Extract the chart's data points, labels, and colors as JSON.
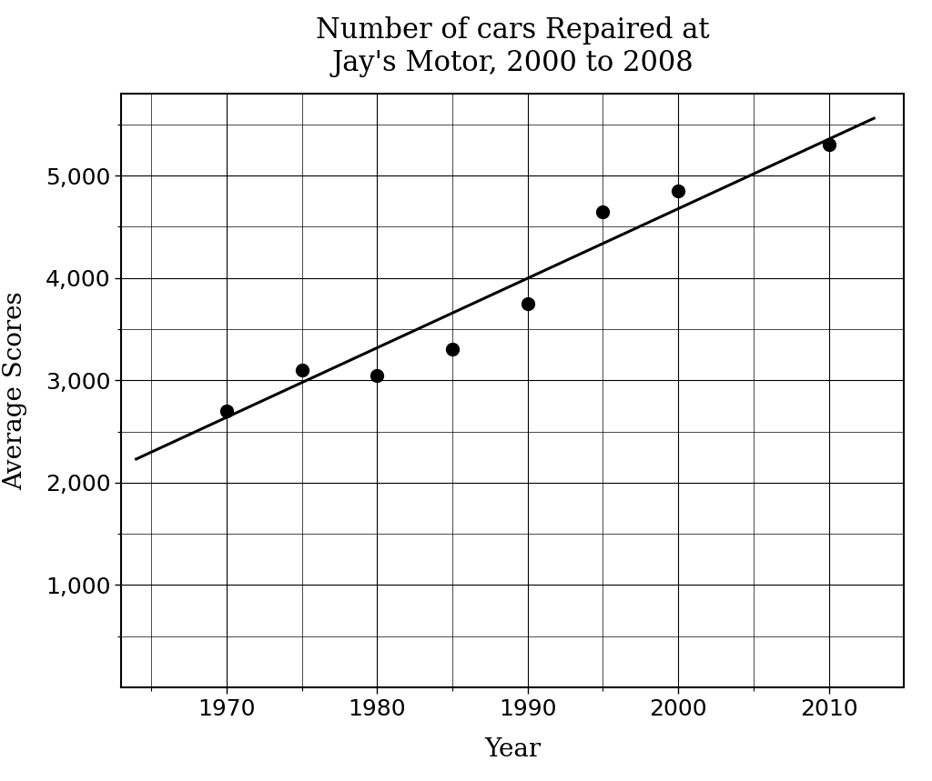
{
  "title": "Number of cars Repaired at\nJay's Motor, 2000 to 2008",
  "xlabel": "Year",
  "ylabel": "Average Scores",
  "x_data": [
    1970,
    1975,
    1980,
    1985,
    1990,
    1995,
    2000,
    2010
  ],
  "y_data": [
    2700,
    3100,
    3050,
    3300,
    3750,
    4650,
    4850,
    5300
  ],
  "trend_x": [
    1964,
    2013
  ],
  "trend_y": [
    2230,
    5560
  ],
  "xlim": [
    1963,
    2015
  ],
  "ylim": [
    0,
    5800
  ],
  "xticks_major": [
    1970,
    1980,
    1990,
    2000,
    2010
  ],
  "xticks_minor": [
    1965,
    1975,
    1985,
    1995,
    2005
  ],
  "yticks_major": [
    1000,
    2000,
    3000,
    4000,
    5000
  ],
  "yticks_minor": [
    500,
    1500,
    2500,
    3500,
    4500,
    5500
  ],
  "background_color": "#ffffff",
  "dot_color": "#000000",
  "line_color": "#000000",
  "dot_size": 100,
  "title_fontsize": 22,
  "axis_label_fontsize": 20,
  "tick_fontsize": 18
}
